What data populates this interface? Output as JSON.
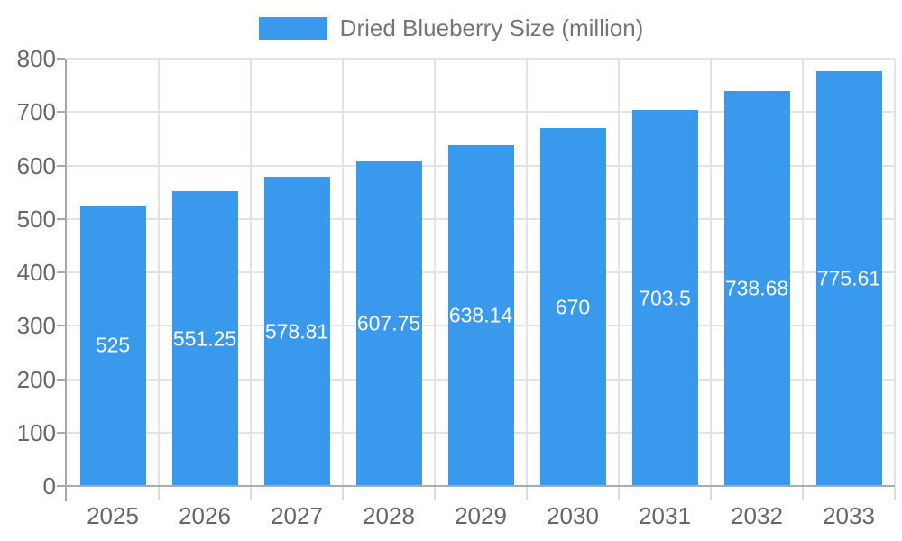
{
  "chart_data": {
    "type": "bar",
    "title": "Dried Blueberry Size (million)",
    "categories": [
      "2025",
      "2026",
      "2027",
      "2028",
      "2029",
      "2030",
      "2031",
      "2032",
      "2033"
    ],
    "values": [
      525,
      551.25,
      578.81,
      607.75,
      638.14,
      670,
      703.5,
      738.68,
      775.61
    ],
    "series_name": "Dried Blueberry Size (million)",
    "yticks": [
      0,
      100,
      200,
      300,
      400,
      500,
      600,
      700,
      800
    ],
    "ylim": [
      0,
      800
    ],
    "grid": true,
    "legend_position": "top",
    "colors": {
      "bar": "#3999EC",
      "bar_label": "#ffffff",
      "grid": "#e3e3e3",
      "axis": "#a8a8a8",
      "tick_text": "#666666",
      "legend_text": "#757575"
    }
  }
}
